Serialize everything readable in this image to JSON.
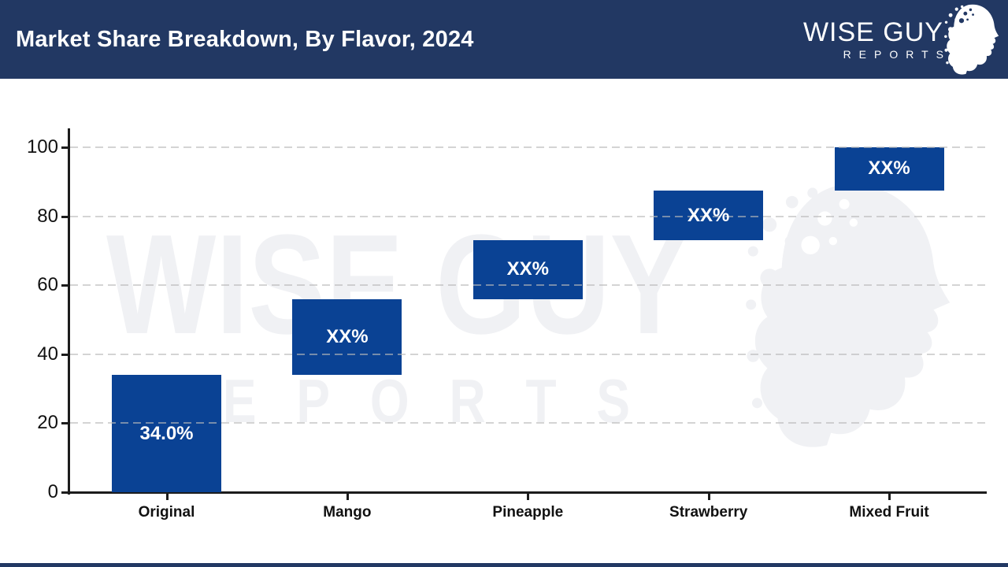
{
  "header": {
    "title": "Market Share Breakdown, By Flavor, 2024",
    "bg_color": "#223863",
    "logo": {
      "line1": "WISE GUY",
      "line2": "REPORTS"
    }
  },
  "watermark": {
    "line1": "WISE GUY",
    "line2": "REPORTS"
  },
  "footer": {
    "bg_color": "#223863"
  },
  "chart_data": {
    "type": "bar",
    "subtype": "waterfall",
    "title": "Market Share Breakdown, By Flavor, 2024",
    "categories": [
      "Original",
      "Mango",
      "Pineapple",
      "Strawberry",
      "Mixed Fruit"
    ],
    "segments": [
      {
        "category": "Original",
        "start": 0,
        "end": 34,
        "value": 34,
        "label": "34.0%"
      },
      {
        "category": "Mango",
        "start": 34,
        "end": 56,
        "value": 22,
        "label": "XX%"
      },
      {
        "category": "Pineapple",
        "start": 56,
        "end": 73,
        "value": 17,
        "label": "XX%"
      },
      {
        "category": "Strawberry",
        "start": 73,
        "end": 87.5,
        "value": 14.5,
        "label": "XX%"
      },
      {
        "category": "Mixed Fruit",
        "start": 87.5,
        "end": 100,
        "value": 12.5,
        "label": "XX%"
      }
    ],
    "xlabel": "",
    "ylabel": "",
    "ylim": [
      0,
      105
    ],
    "yticks": [
      0,
      20,
      40,
      60,
      80,
      100
    ],
    "grid": {
      "horizontal": true,
      "style": "dashed",
      "drawn_over_bars": true
    },
    "legend": "none",
    "bar_color": "#0a4294",
    "bar_label_color": "#ffffff",
    "axis_color": "#1c1c1c",
    "tick_label_color": "#111111"
  }
}
